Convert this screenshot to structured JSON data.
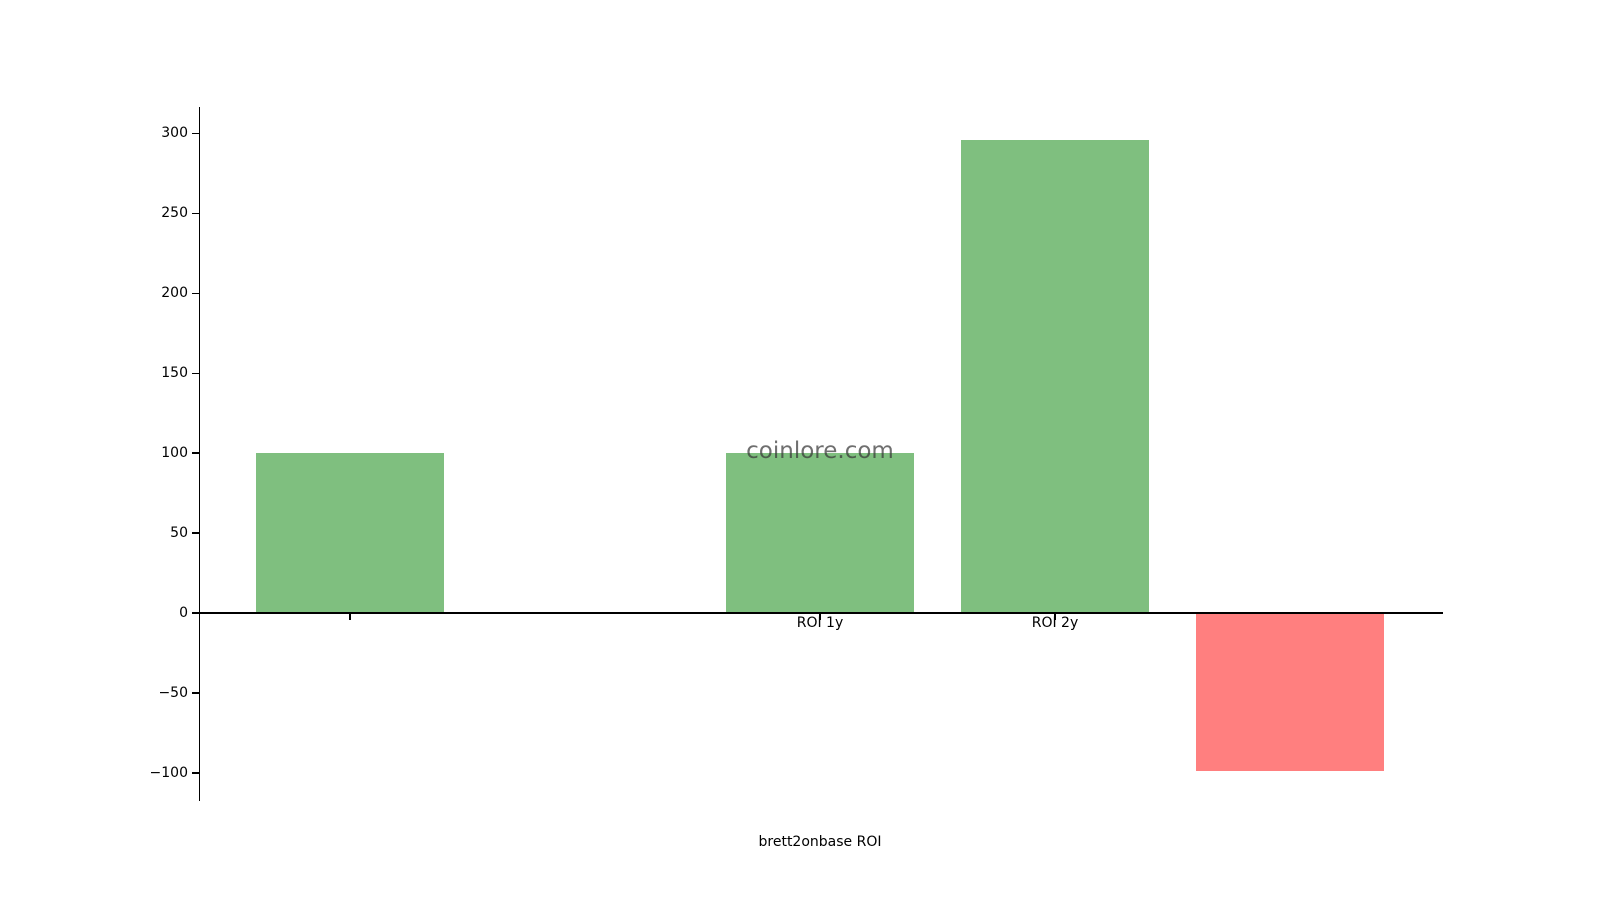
{
  "watermark": {
    "text": "coinlore.com",
    "color": "rgba(55,55,55,0.72)"
  },
  "chart_data": {
    "type": "bar",
    "title": "",
    "xlabel": "brett2onbase ROI",
    "ylabel": "",
    "ylim": [
      -118.75,
      315.75
    ],
    "yticks": [
      300,
      250,
      200,
      150,
      100,
      50,
      0,
      -50,
      -100
    ],
    "ytick_labels": [
      "300",
      "250",
      "200",
      "150",
      "100",
      "50",
      "0",
      "−50",
      "−100"
    ],
    "grid": false,
    "legend": null,
    "categories": [
      "",
      "",
      "ROI 1y",
      "ROI 2y",
      ""
    ],
    "values": [
      100,
      null,
      100,
      296,
      -99
    ],
    "x_ticks_visible": [
      true,
      false,
      true,
      true,
      false
    ],
    "bar_color_roles": [
      "positive",
      null,
      "positive",
      "positive",
      "negative"
    ],
    "colors": {
      "positive": "rgba(0,128,0,0.5)",
      "negative": "rgba(255,0,0,0.5)",
      "axis": "#000000"
    },
    "watermark": "coinlore.com"
  }
}
